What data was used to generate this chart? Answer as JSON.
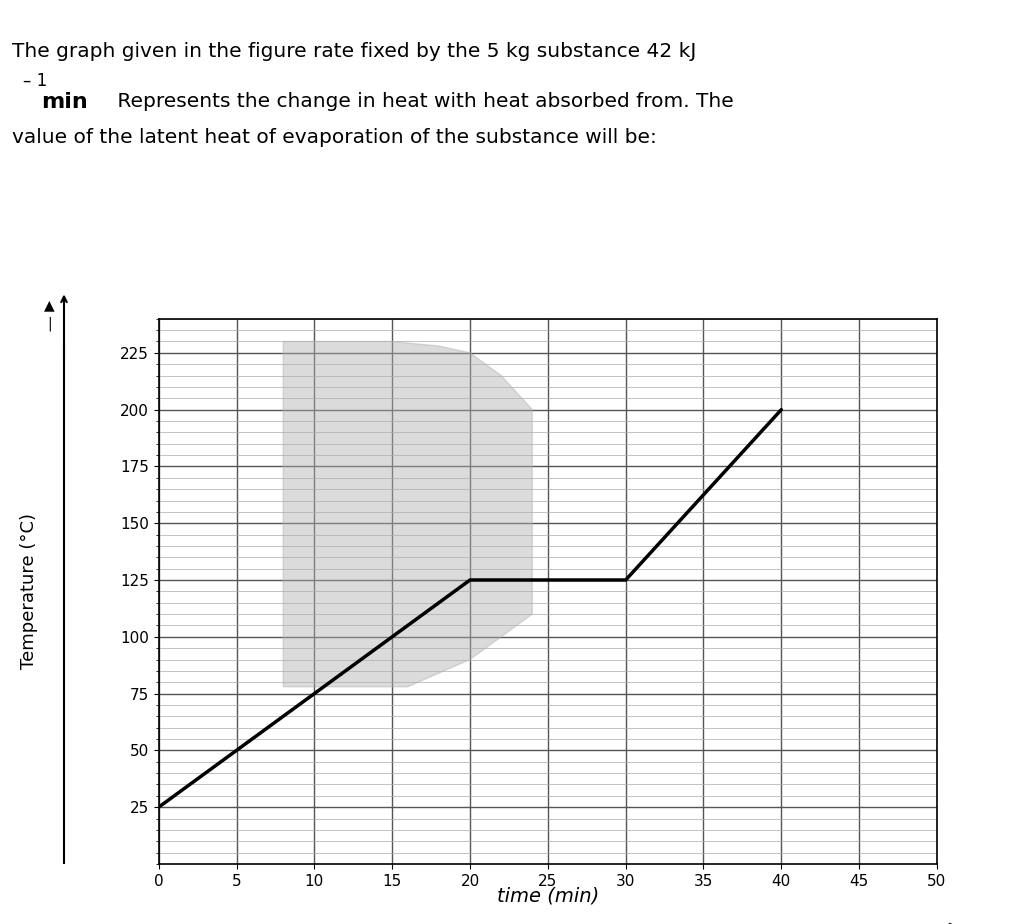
{
  "line_x": [
    0,
    5,
    20,
    30,
    40
  ],
  "line_y": [
    25,
    50,
    125,
    125,
    200
  ],
  "xlabel": "time (min)",
  "ylabel": "Temperature (°C)",
  "x_ticks": [
    0,
    5,
    10,
    15,
    20,
    25,
    30,
    35,
    40,
    45,
    50
  ],
  "y_ticks": [
    25,
    50,
    75,
    100,
    125,
    150,
    175,
    200,
    225
  ],
  "xlim": [
    0,
    50
  ],
  "ylim": [
    0,
    240
  ],
  "line_color": "#000000",
  "line_width": 2.5,
  "grid_major_color": "#555555",
  "grid_minor_color": "#aaaaaa",
  "grid_major_lw": 1.0,
  "grid_minor_lw": 0.5,
  "background_color": "#ffffff",
  "title_line1": "The graph given in the figure rate fixed by the 5 kg substance 42 kJ",
  "title_sup": "– 1",
  "title_line3a": "min",
  "title_line3b": " Represents the change in heat with heat absorbed from. The",
  "title_line4": "value of the latent heat of evaporation of the substance will be:",
  "shaded_color": "#b0b0b0",
  "shaded_alpha": 0.45,
  "arrow_color": "#000000"
}
